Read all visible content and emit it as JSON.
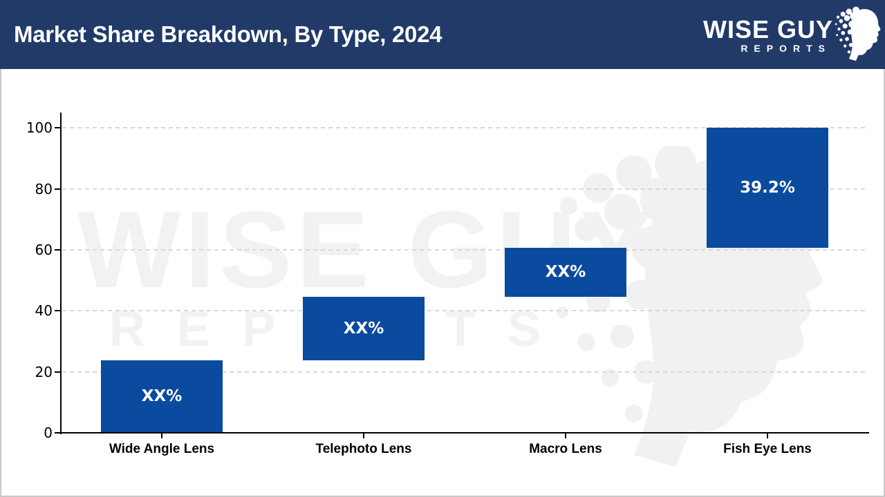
{
  "header": {
    "title": "Market Share Breakdown, By Type, 2024",
    "logo": {
      "brand": "WISE GUY",
      "sub": "REPORTS"
    }
  },
  "watermark": {
    "line1": "WISE GUY",
    "line2": "REPORTS"
  },
  "colors": {
    "header_bg": "#213a68",
    "bar": "#0a4b9f",
    "bar_label": "#ffffff",
    "grid": "#d8d8d8",
    "axis": "#000000",
    "watermark": "#f2f2f4",
    "border": "#c9c9c9"
  },
  "chart_data": {
    "type": "bar",
    "subtype": "floating-waterfall",
    "title": "Market Share Breakdown, By Type, 2024",
    "categories": [
      "Wide Angle Lens",
      "Telephoto Lens",
      "Macro Lens",
      "Fish Eye Lens"
    ],
    "series": [
      {
        "name": "Market Share (%)",
        "segments": [
          {
            "category": "Wide Angle Lens",
            "start": 0,
            "end": 23.8,
            "label": "XX%"
          },
          {
            "category": "Telephoto Lens",
            "start": 23.8,
            "end": 44.7,
            "label": "XX%"
          },
          {
            "category": "Macro Lens",
            "start": 44.7,
            "end": 60.8,
            "label": "XX%"
          },
          {
            "category": "Fish Eye Lens",
            "start": 60.8,
            "end": 100,
            "label": "39.2%"
          }
        ]
      }
    ],
    "xlabel": "",
    "ylabel": "",
    "yticks": [
      0,
      20,
      40,
      60,
      80,
      100
    ],
    "ylim": [
      0,
      105
    ],
    "grid": "horizontal-dashed",
    "legend": "none"
  }
}
